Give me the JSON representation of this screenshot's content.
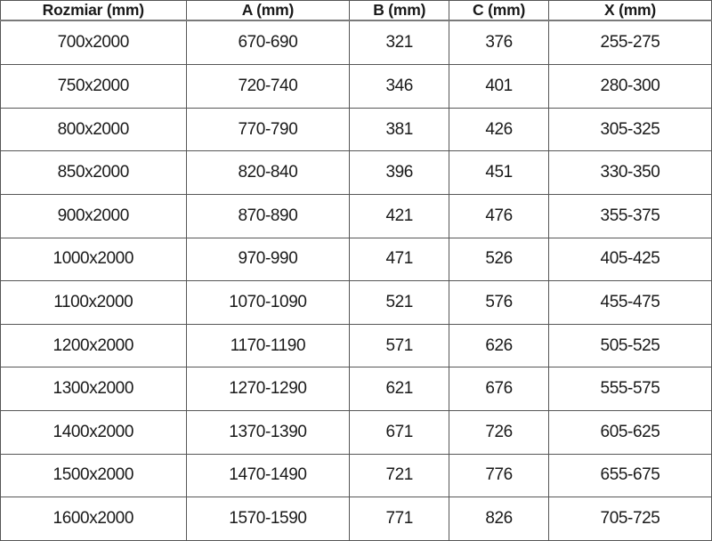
{
  "table": {
    "border_color": "#565656",
    "header_separator_color": "#7a7a7a",
    "text_color": "#1a1a1a",
    "background_color": "#ffffff",
    "columns": [
      "Rozmiar (mm)",
      "A (mm)",
      "B (mm)",
      "C (mm)",
      "X (mm)"
    ],
    "rows": [
      [
        "700x2000",
        "670-690",
        "321",
        "376",
        "255-275"
      ],
      [
        "750x2000",
        "720-740",
        "346",
        "401",
        "280-300"
      ],
      [
        "800x2000",
        "770-790",
        "381",
        "426",
        "305-325"
      ],
      [
        "850x2000",
        "820-840",
        "396",
        "451",
        "330-350"
      ],
      [
        "900x2000",
        "870-890",
        "421",
        "476",
        "355-375"
      ],
      [
        "1000x2000",
        "970-990",
        "471",
        "526",
        "405-425"
      ],
      [
        "1100x2000",
        "1070-1090",
        "521",
        "576",
        "455-475"
      ],
      [
        "1200x2000",
        "1170-1190",
        "571",
        "626",
        "505-525"
      ],
      [
        "1300x2000",
        "1270-1290",
        "621",
        "676",
        "555-575"
      ],
      [
        "1400x2000",
        "1370-1390",
        "671",
        "726",
        "605-625"
      ],
      [
        "1500x2000",
        "1470-1490",
        "721",
        "776",
        "655-675"
      ],
      [
        "1600x2000",
        "1570-1590",
        "771",
        "826",
        "705-725"
      ]
    ]
  }
}
